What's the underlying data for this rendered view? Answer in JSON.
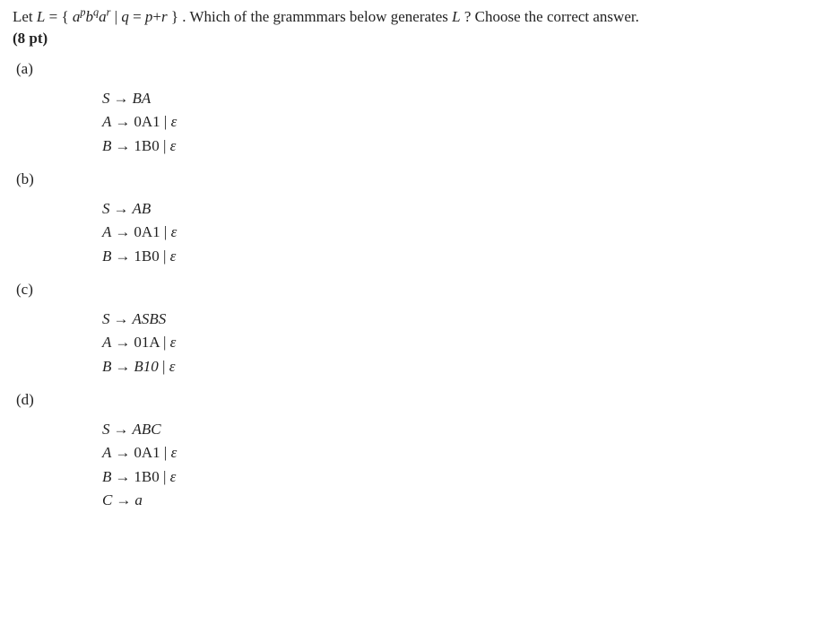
{
  "prompt": {
    "prefix": "Let ",
    "L_eq": "L",
    "equals": " = ",
    "set_open": "{",
    "term_a": "a",
    "exp_p": "p",
    "term_b": "b",
    "exp_q": "q",
    "term_a2": "a",
    "exp_r": "r",
    "bar": " | ",
    "cond_q": "q",
    "cond_eq": " = ",
    "cond_p": "p",
    "cond_plus": "+",
    "cond_r": "r",
    "set_close": "}",
    "tail": ". Which of the grammmars below generates ",
    "L_tail": "L",
    "tail_end": "? Choose the correct answer.",
    "points": "(8 pt)"
  },
  "arrow": "→",
  "epsilon": "ε",
  "pipe": " | ",
  "options": {
    "a": {
      "label": "(a)",
      "rules": [
        {
          "lhs": "S",
          "rhs_plain": "BA"
        },
        {
          "lhs": "A",
          "rhs_plain": "0A1",
          "alt_eps": true
        },
        {
          "lhs": "B",
          "rhs_plain": "1B0",
          "alt_eps": true
        }
      ]
    },
    "b": {
      "label": "(b)",
      "rules": [
        {
          "lhs": "S",
          "rhs_plain": "AB"
        },
        {
          "lhs": "A",
          "rhs_plain": "0A1",
          "alt_eps": true
        },
        {
          "lhs": "B",
          "rhs_plain": "1B0",
          "alt_eps": true
        }
      ]
    },
    "c": {
      "label": "(c)",
      "rules": [
        {
          "lhs": "S",
          "rhs_plain": "ASBS"
        },
        {
          "lhs": "A",
          "rhs_plain": "01A",
          "alt_eps": true
        },
        {
          "lhs": "B",
          "rhs_plain": "B10",
          "alt_eps": true
        }
      ]
    },
    "d": {
      "label": "(d)",
      "rules": [
        {
          "lhs": "S",
          "rhs_plain": "ABC"
        },
        {
          "lhs": "A",
          "rhs_plain": "0A1",
          "alt_eps": true
        },
        {
          "lhs": "B",
          "rhs_plain": "1B0",
          "alt_eps": true
        },
        {
          "lhs": "C",
          "rhs_plain": "a"
        }
      ]
    }
  }
}
